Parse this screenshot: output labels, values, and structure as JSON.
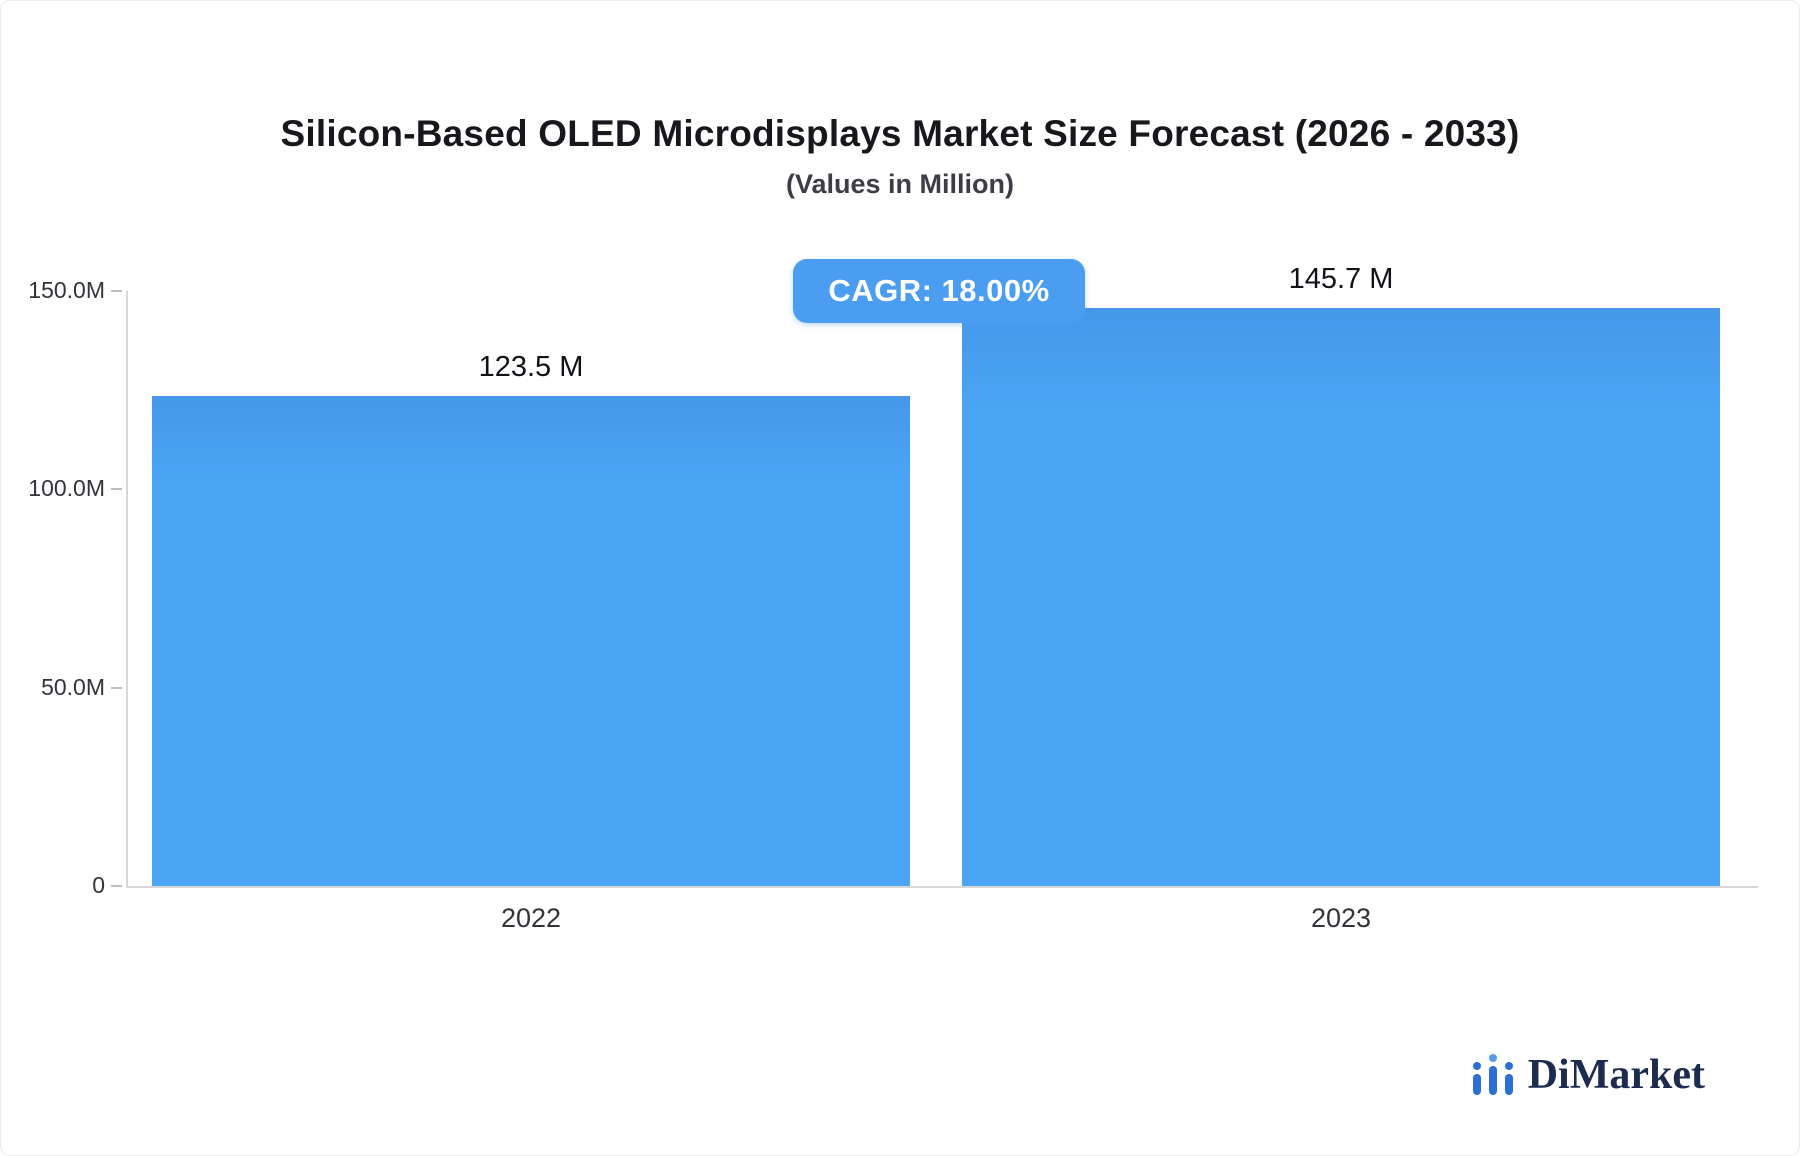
{
  "chart_data": {
    "type": "bar",
    "title": "Silicon-Based OLED Microdisplays Market Size Forecast (2026 - 2033)",
    "subtitle": "(Values in Million)",
    "categories": [
      "2022",
      "2023"
    ],
    "values": [
      123.5,
      145.7
    ],
    "value_labels": [
      "123.5 M",
      "145.7 M"
    ],
    "xlabel": "",
    "ylabel": "",
    "ylim": [
      0,
      150
    ],
    "yticks": [
      0,
      50,
      100,
      150
    ],
    "ytick_labels": [
      "0",
      "50.0M",
      "100.0M",
      "150.0M"
    ],
    "bar_color": "#4AA5F5",
    "grid": false,
    "legend": "none",
    "annotations": [
      "CAGR: 18.00%"
    ]
  },
  "badge": {
    "cagr_label": "CAGR: 18.00%",
    "color": "#4A9DF0"
  },
  "branding": {
    "name": "DiMarket",
    "icon": "dimarket-bars-icon",
    "icon_color": "#2B6FD4",
    "text_color": "#1C2B4E"
  }
}
